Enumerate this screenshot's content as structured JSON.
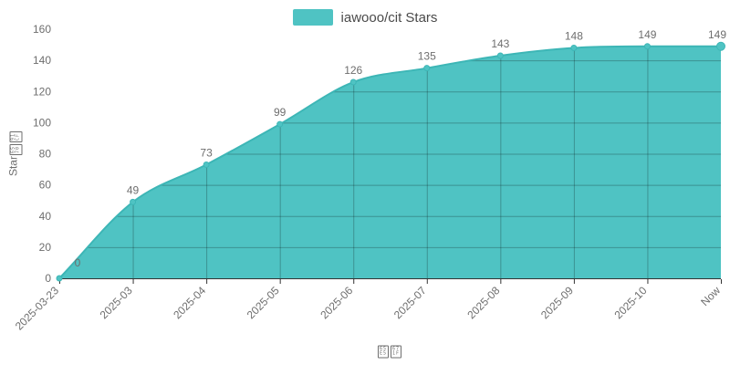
{
  "legend": {
    "label": "iawooo/cit Stars",
    "color": "#4fc3c3"
  },
  "axes": {
    "y_title": "Star数量",
    "x_title": "日期"
  },
  "chart_data": {
    "type": "area",
    "title": "",
    "series_name": "iawooo/cit Stars",
    "categories": [
      "2025-03-23",
      "2025-03",
      "2025-04",
      "2025-05",
      "2025-06",
      "2025-07",
      "2025-08",
      "2025-09",
      "2025-10",
      "Now"
    ],
    "values": [
      0,
      49,
      73,
      99,
      126,
      135,
      143,
      148,
      149,
      149
    ],
    "data_labels": [
      "0",
      "49",
      "73",
      "99",
      "126",
      "135",
      "143",
      "148",
      "149",
      "149"
    ],
    "ylim": [
      0,
      160
    ],
    "y_ticks": [
      0,
      20,
      40,
      60,
      80,
      100,
      120,
      140,
      160
    ],
    "grid": true,
    "smooth": true,
    "legend_position": "top-center",
    "colors": {
      "fill": "#4fc3c3",
      "line": "#3db6b6",
      "grid": "rgba(0,0,0,0.25)",
      "axis_line": "#333333",
      "tick_label": "#6e6e6e",
      "data_label": "#6e6e6e"
    }
  }
}
